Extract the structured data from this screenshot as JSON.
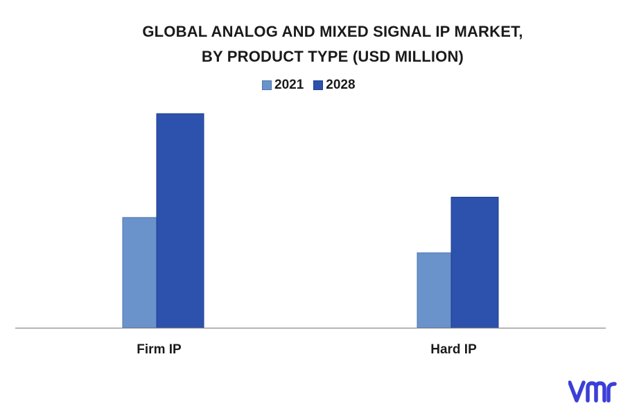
{
  "chart_data": {
    "type": "bar",
    "title_lines": [
      "GLOBAL ANALOG AND MIXED SIGNAL IP MARKET,",
      "BY PRODUCT TYPE (USD MILLION)"
    ],
    "categories": [
      "Firm IP",
      "Hard IP"
    ],
    "series": [
      {
        "name": "2021",
        "color": "#6a93cb",
        "values": [
          51.5,
          35
        ]
      },
      {
        "name": "2028",
        "color": "#2d52ad",
        "values": [
          100,
          61
        ]
      }
    ],
    "ylim": [
      0,
      100
    ],
    "grid": false,
    "legend_position": "top-center",
    "axes_shown": false
  },
  "logo": {
    "text": "vmr",
    "color": "#3b3fd8"
  }
}
